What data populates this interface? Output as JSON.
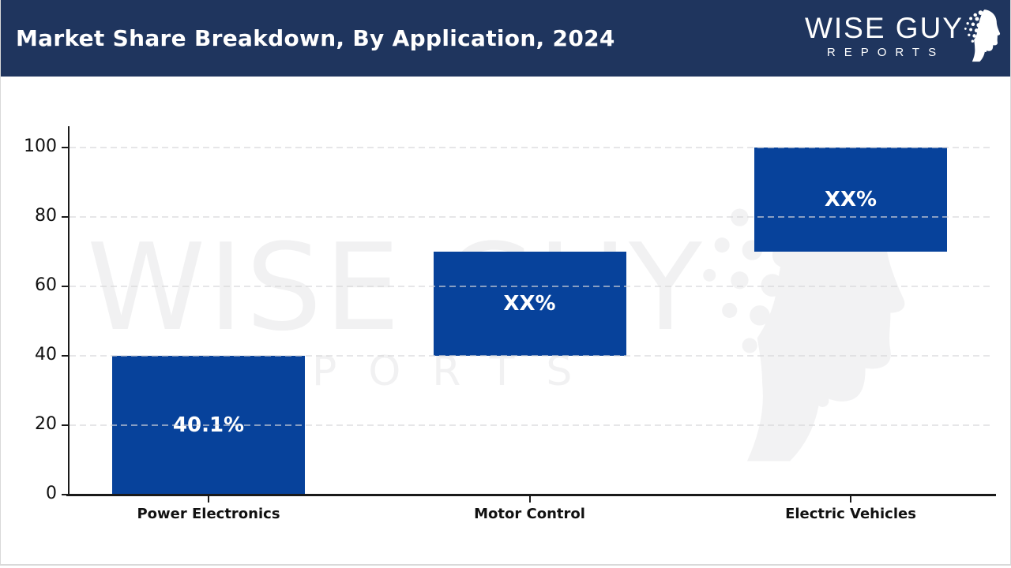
{
  "header": {
    "title": "Market Share Breakdown, By Application, 2024",
    "logo": {
      "line1": "WISE GUY",
      "line2": "REPORTS"
    }
  },
  "watermark": {
    "line1": "WISE GUY",
    "line2": "REPORTS"
  },
  "chart_data": {
    "type": "bar",
    "variant": "waterfall",
    "title": "Market Share Breakdown, By Application, 2024",
    "categories": [
      "Power Electronics",
      "Motor Control",
      "Electric Vehicles"
    ],
    "series": [
      {
        "name": "Market Share",
        "segments": [
          {
            "category": "Power Electronics",
            "start": 0,
            "end": 40.1,
            "label": "40.1%"
          },
          {
            "category": "Motor Control",
            "start": 40.1,
            "end": 70,
            "label": "XX%"
          },
          {
            "category": "Electric Vehicles",
            "start": 70,
            "end": 100,
            "label": "XX%"
          }
        ]
      }
    ],
    "yticks": [
      0,
      20,
      40,
      60,
      80,
      100
    ],
    "ylim": [
      0,
      106
    ],
    "xlabel": "",
    "ylabel": "",
    "grid": "dashed-horizontal",
    "legend": "none",
    "bar_color": "#07429b",
    "bar_label_color": "#ffffff",
    "grid_color": "#d9d9d9",
    "axis_color": "#1a1a1a",
    "header_bg_color": "#1f355e",
    "watermark_color": "#f1f1f2"
  }
}
